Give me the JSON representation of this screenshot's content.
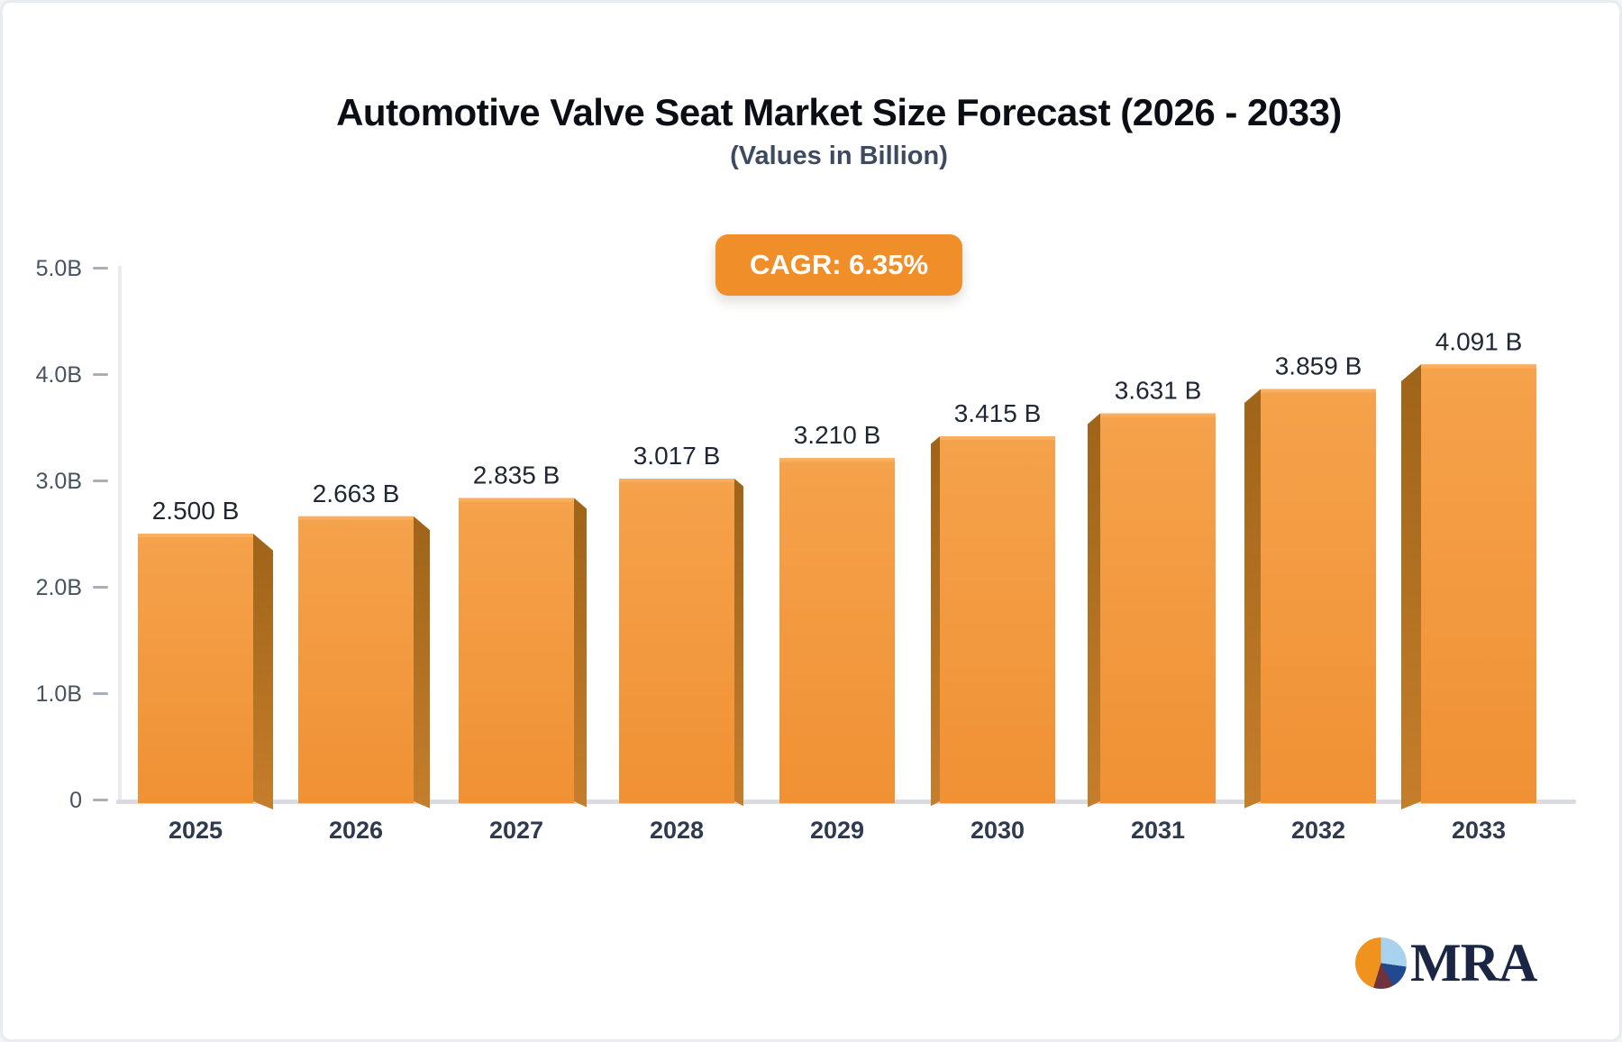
{
  "page": {
    "background": "#ffffff",
    "border_color": "#e9ecef"
  },
  "header": {
    "title": "Automotive Valve Seat Market Size Forecast (2026 - 2033)",
    "subtitle": "(Values in Billion)"
  },
  "badge": {
    "label": "CAGR: 6.35%"
  },
  "chart_data": {
    "type": "bar",
    "title": "Automotive Valve Seat Market Size Forecast (2026 - 2033)",
    "subtitle": "(Values in Billion)",
    "cagr_label": "CAGR: 6.35%",
    "categories": [
      "2025",
      "2026",
      "2027",
      "2028",
      "2029",
      "2030",
      "2031",
      "2032",
      "2033"
    ],
    "values": [
      2.5,
      2.663,
      2.835,
      3.017,
      3.21,
      3.415,
      3.631,
      3.859,
      4.091
    ],
    "bar_labels": [
      "2.500 B",
      "2.663 B",
      "2.835 B",
      "3.017 B",
      "3.210 B",
      "3.415 B",
      "3.631 B",
      "3.859 B",
      "4.091 B"
    ],
    "xlabel": "",
    "ylabel": "",
    "ylim": [
      0,
      5
    ],
    "y_ticks": [
      {
        "value": 0,
        "label": "0"
      },
      {
        "value": 1,
        "label": "1.0B"
      },
      {
        "value": 2,
        "label": "2.0B"
      },
      {
        "value": 3,
        "label": "3.0B"
      },
      {
        "value": 4,
        "label": "4.0B"
      },
      {
        "value": 5,
        "label": "5.0B"
      }
    ],
    "grid": false,
    "legend": "none",
    "bar_style": "3d-extruded-center-perspective",
    "colors": {
      "bar_front_top": "#f5a24c",
      "bar_front_bottom": "#f09134",
      "bar_top_highlight": "#f8b164",
      "bar_side_top": "#9e6419",
      "bar_side_bottom": "#c57e2b",
      "axis_line": "#e9ebef",
      "baseline": "#d8dbdf",
      "tick": "#a9afb9",
      "tick_label": "#49525f",
      "value_label": "#1e2733",
      "year_label": "#2f3a4d",
      "badge_bg": "#f08e2a",
      "badge_text": "#ffffff"
    }
  },
  "logo": {
    "text": "MRA",
    "text_color": "#1b2644",
    "pie_slices": [
      {
        "name": "light-blue",
        "color": "#a9d2ee",
        "from_deg": 0,
        "to_deg": 98
      },
      {
        "name": "dark-blue",
        "color": "#20498f",
        "from_deg": 98,
        "to_deg": 152
      },
      {
        "name": "maroon",
        "color": "#6e333c",
        "from_deg": 152,
        "to_deg": 197
      },
      {
        "name": "orange",
        "color": "#f0921e",
        "from_deg": 197,
        "to_deg": 360
      }
    ]
  }
}
